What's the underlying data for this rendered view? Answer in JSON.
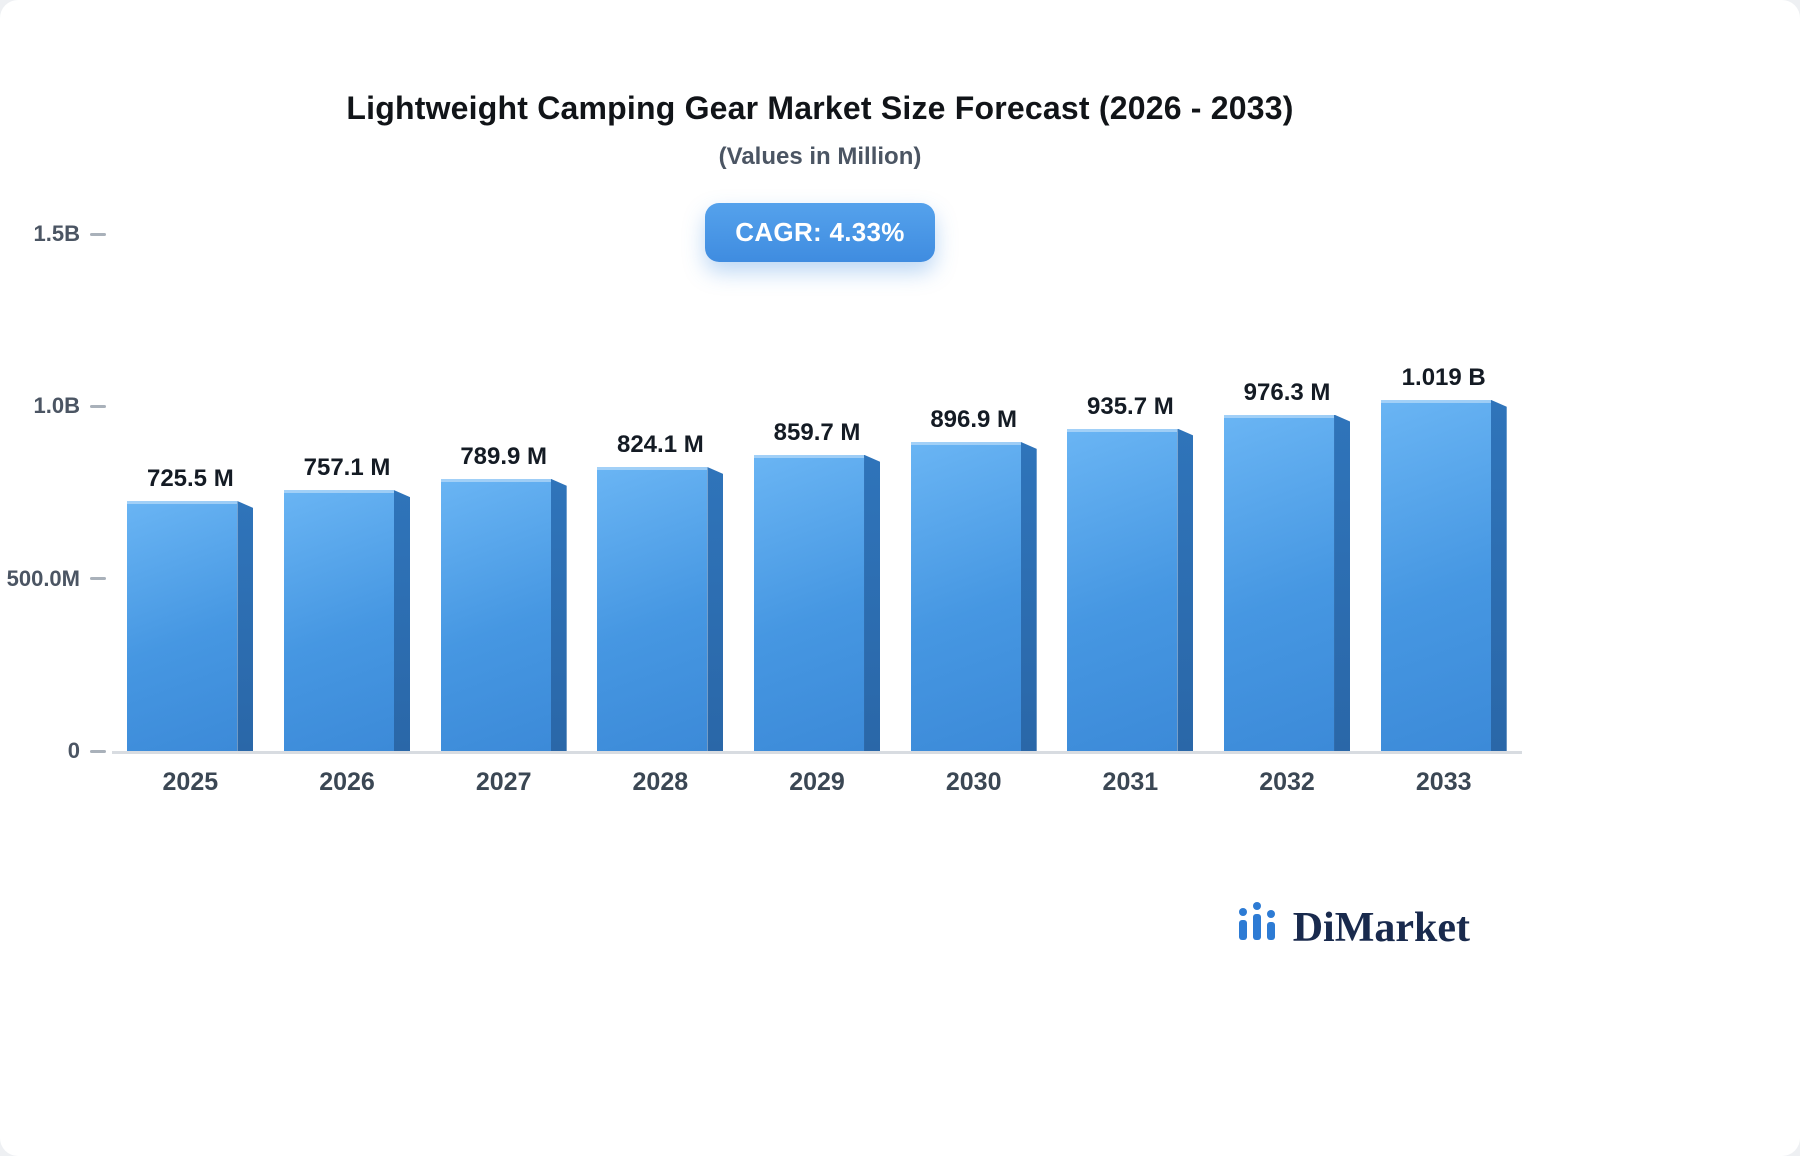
{
  "header": {
    "title": "Lightweight Camping Gear Market Size Forecast (2026 - 2033)",
    "subtitle": "(Values in Million)"
  },
  "badge": {
    "label": "CAGR: 4.33%"
  },
  "chart_data": {
    "type": "bar",
    "title": "Lightweight Camping Gear Market Size Forecast (2026 - 2033)",
    "subtitle": "(Values in Million)",
    "unit": "Million",
    "categories": [
      "2025",
      "2026",
      "2027",
      "2028",
      "2029",
      "2030",
      "2031",
      "2032",
      "2033"
    ],
    "values": [
      725.5,
      757.1,
      789.9,
      824.1,
      859.7,
      896.9,
      935.7,
      976.3,
      1019
    ],
    "value_labels": [
      "725.5 M",
      "757.1 M",
      "789.9 M",
      "824.1 M",
      "859.7 M",
      "896.9 M",
      "935.7 M",
      "976.3 M",
      "1.019 B"
    ],
    "xlabel": "",
    "ylabel": "",
    "ylim": [
      0,
      1500
    ],
    "y_ticks": [
      {
        "value": 1500,
        "label": "1.5B"
      },
      {
        "value": 1000,
        "label": "1.0B"
      },
      {
        "value": 500,
        "label": "500.0M"
      },
      {
        "value": 0,
        "label": "0"
      }
    ],
    "grid": false,
    "legend": false,
    "cagr": "CAGR: 4.33%",
    "colors": {
      "bar_face_top": "#6ab5f4",
      "bar_face_bottom": "#3c8ad8",
      "bar_side": "#2d6fb3",
      "badge": "#4696e6",
      "axis_line": "#d8dce1",
      "label_text": "#141b24"
    }
  },
  "footer": {
    "brand": "DiMarket",
    "logo_icon": "bar-chart-icon"
  }
}
